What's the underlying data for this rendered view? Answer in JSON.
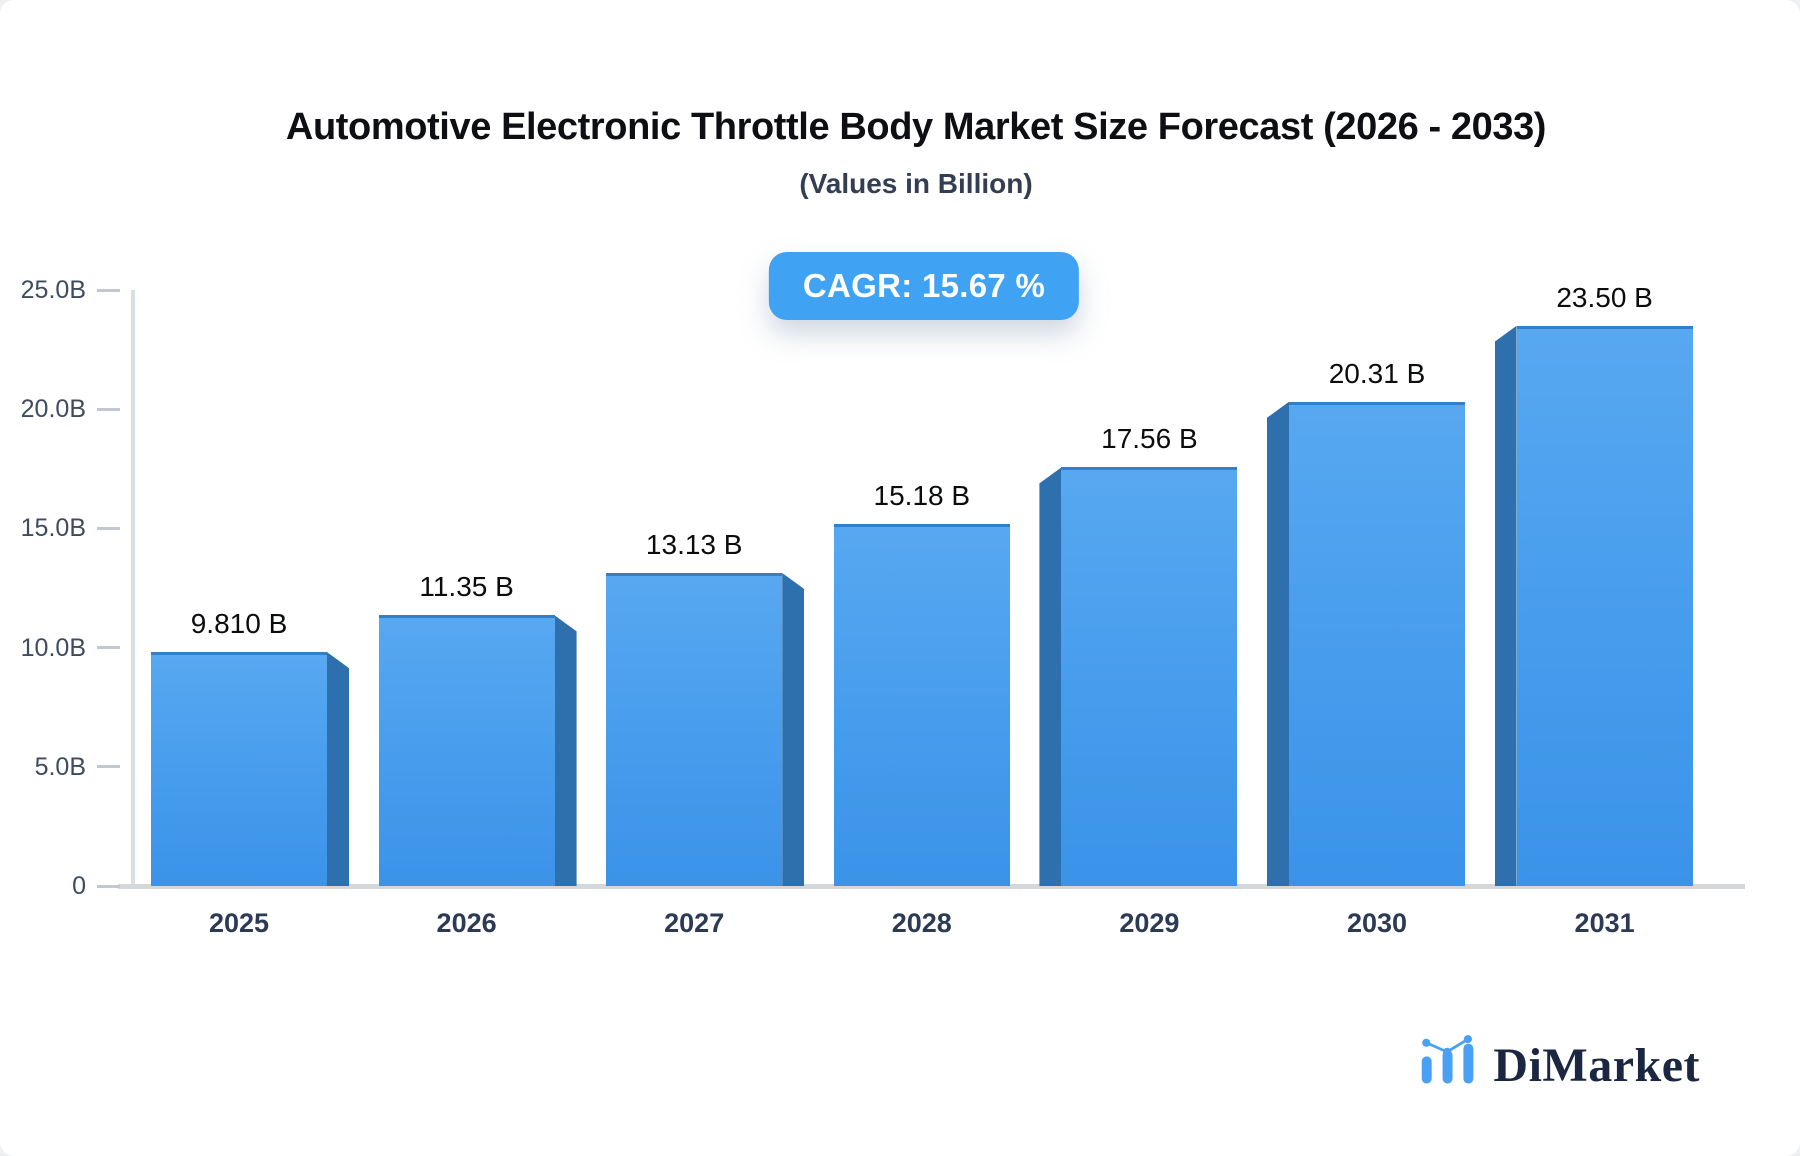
{
  "header": {
    "title": "Automotive Electronic Throttle Body Market Size Forecast (2026 - 2033)",
    "subtitle": "(Values in Billion)",
    "cagr_label": "CAGR: 15.67 %"
  },
  "chart_data": {
    "type": "bar",
    "title": "Automotive Electronic Throttle Body Market Size Forecast (2026 - 2033)",
    "subtitle": "(Values in Billion)",
    "cagr_percent": 15.67,
    "categories": [
      "2025",
      "2026",
      "2027",
      "2028",
      "2029",
      "2030",
      "2031"
    ],
    "values": [
      9.81,
      11.35,
      13.13,
      15.18,
      17.56,
      20.31,
      23.5
    ],
    "value_labels": [
      "9.810 B",
      "11.35 B",
      "13.13 B",
      "15.18 B",
      "17.56 B",
      "20.31 B",
      "23.50 B"
    ],
    "xlabel": "",
    "ylabel": "",
    "ylim": [
      0,
      25
    ],
    "ytick_labels": [
      "0",
      "5.0B",
      "10.0B",
      "15.0B",
      "20.0B",
      "25.0B"
    ],
    "grid": false,
    "legend": false,
    "style": "3d-bars, side shading toward center vanishing point"
  },
  "colors": {
    "accent_blue": "#3fa2f3",
    "bar_top": "#57a8f0",
    "bar_mid": "#469ced",
    "bar_bottom": "#3b93e9",
    "bar_side": "#2e6fae",
    "logo_blue": "#4aa0f5"
  },
  "footer": {
    "brand": "DiMarket"
  }
}
